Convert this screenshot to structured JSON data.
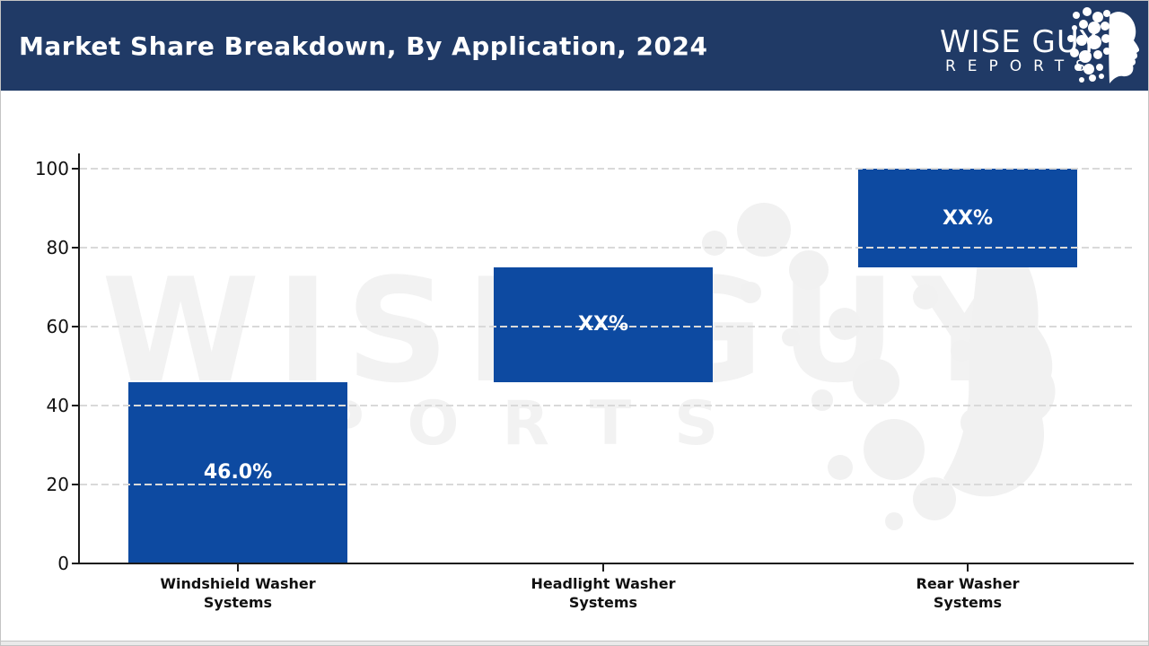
{
  "header": {
    "title": "Market Share Breakdown, By Application, 2024",
    "logo": {
      "brand": "WISE GUY",
      "tagline": "REPORTS"
    }
  },
  "watermark": {
    "line1": "WISE GUY",
    "line2": "REPORTS"
  },
  "colors": {
    "header_bg": "#203a66",
    "bar": "#0d4aa1",
    "bar_label": "#ffffff",
    "gridline": "#d9d9d9",
    "axis": "#1a1a1a",
    "watermark": "#f2f2f2"
  },
  "chart_data": {
    "type": "bar",
    "subtype": "stacked-waterfall",
    "title": "Market Share Breakdown, By Application, 2024",
    "categories": [
      "Windshield Washer\nSystems",
      "Headlight Washer\nSystems",
      "Rear Washer\nSystems"
    ],
    "bars": [
      {
        "category": "Windshield Washer Systems",
        "start": 0,
        "end": 46,
        "label": "46.0%"
      },
      {
        "category": "Headlight Washer Systems",
        "start": 46,
        "end": 75,
        "label": "XX%"
      },
      {
        "category": "Rear Washer Systems",
        "start": 75,
        "end": 100,
        "label": "XX%"
      }
    ],
    "yticks": [
      0,
      20,
      40,
      60,
      80,
      100
    ],
    "ylim": [
      0,
      105
    ],
    "xlabel": "",
    "ylabel": "",
    "grid": "horizontal-dashed",
    "legend": "none",
    "bar_color": "#0d4aa1",
    "bar_label_color": "#ffffff"
  }
}
